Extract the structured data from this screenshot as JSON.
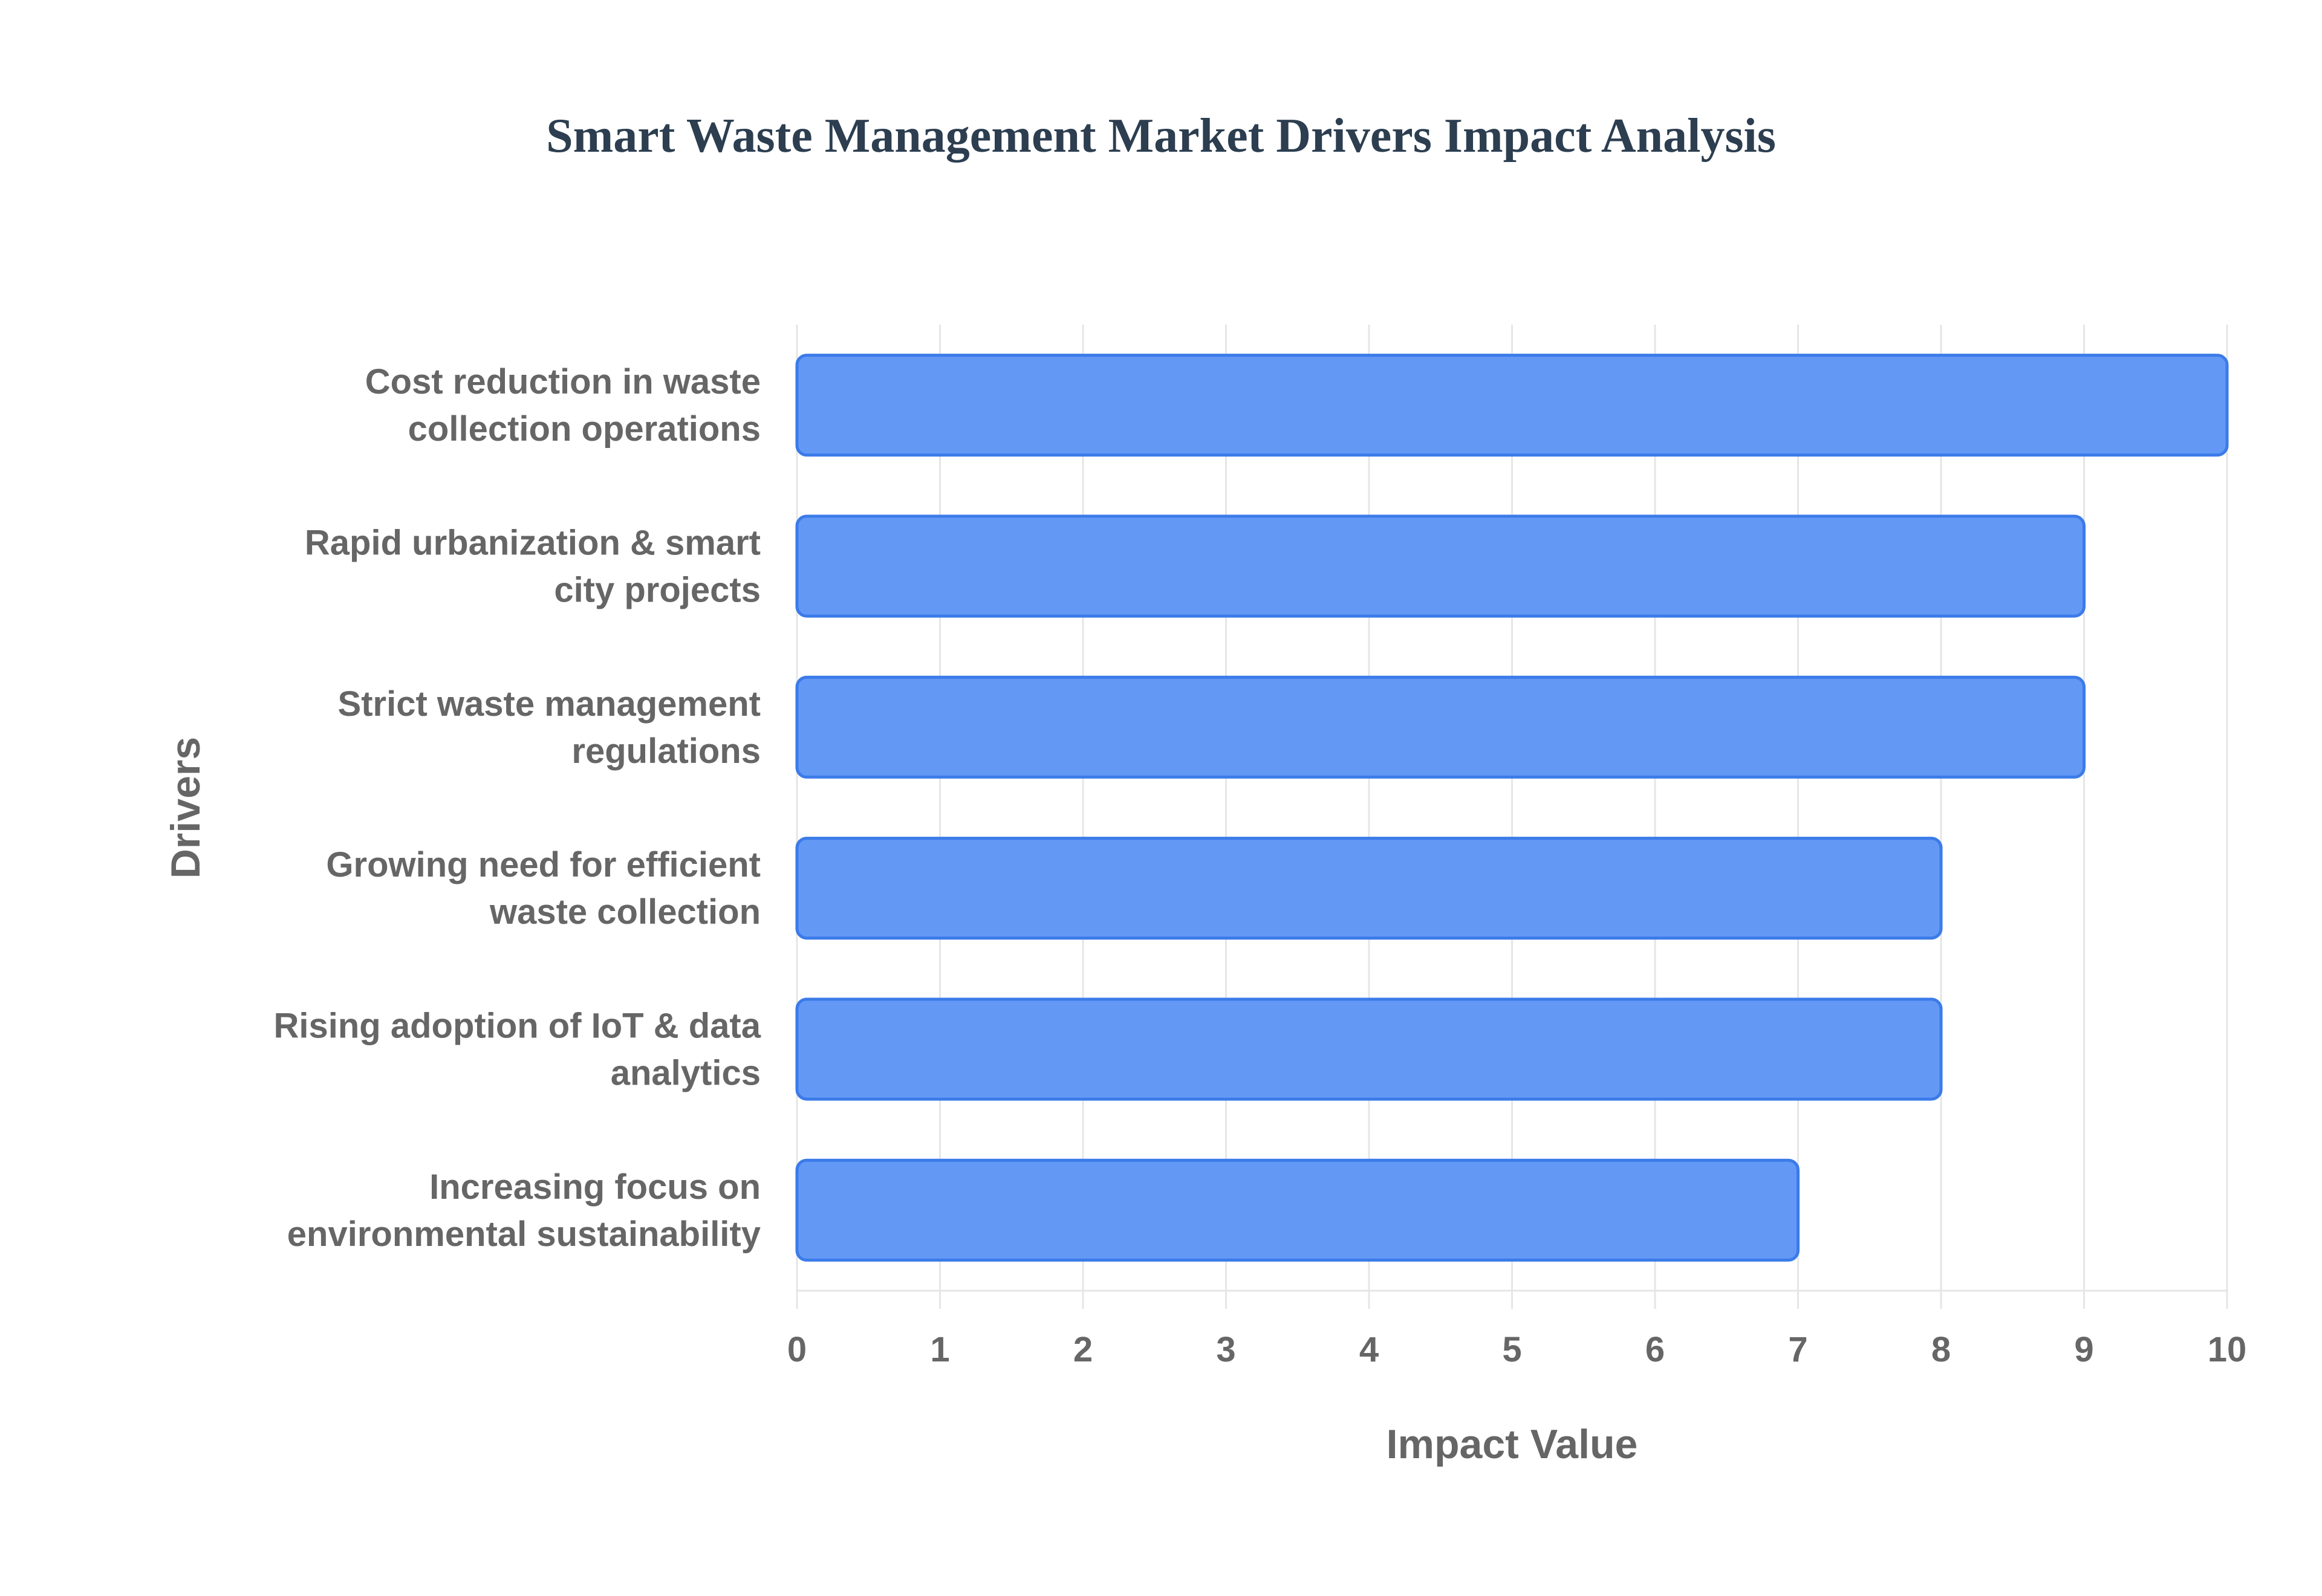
{
  "chart_data": {
    "type": "bar",
    "orientation": "horizontal",
    "title": "Smart Waste Management Market Drivers Impact Analysis",
    "xlabel": "Impact Value",
    "ylabel": "Drivers",
    "categories": [
      [
        "Cost reduction in waste",
        "collection operations"
      ],
      [
        "Rapid urbanization & smart",
        "city projects"
      ],
      [
        "Strict waste management",
        "regulations"
      ],
      [
        "Growing need for efficient",
        "waste collection"
      ],
      [
        "Rising adoption of IoT & data",
        "analytics"
      ],
      [
        "Increasing focus on",
        "environmental sustainability"
      ]
    ],
    "values": [
      10,
      9,
      9,
      8,
      8,
      7
    ],
    "xlim": [
      0,
      10
    ],
    "xticks": [
      "0",
      "1",
      "2",
      "3",
      "4",
      "5",
      "6",
      "7",
      "8",
      "9",
      "10"
    ],
    "grid": true,
    "legend": "none",
    "colors": {
      "bar_fill": "#6399f5",
      "bar_stroke": "#3b7be9",
      "grid": "#e6e6e6",
      "text": "#666666",
      "title": "#2c3e50"
    }
  }
}
